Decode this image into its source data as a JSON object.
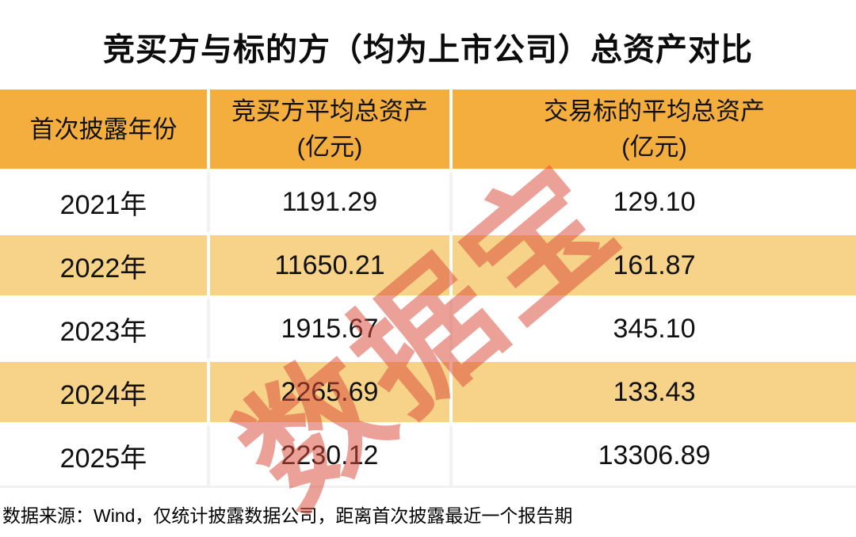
{
  "title": "竞买方与标的方（均为上市公司）总资产对比",
  "watermark": "数据宝",
  "source_note": "数据来源：Wind，仅统计披露数据公司，距离首次披露最近一个报告期",
  "colors": {
    "header_bg": "#F4AE3E",
    "highlight_row_bg": "#F7D289",
    "watermark_color": "#DB4B3A",
    "divider_grey": "#F1F1F1"
  },
  "table": {
    "header": [
      {
        "line1": "首次披露年份",
        "line2": ""
      },
      {
        "line1": "竞买方平均总资产",
        "line2": "(亿元)"
      },
      {
        "line1": "交易标的平均总资产",
        "line2": "(亿元)"
      }
    ],
    "rows": [
      {
        "year": "2021年",
        "buyer": "1191.29",
        "target": "129.10",
        "highlight": false
      },
      {
        "year": "2022年",
        "buyer": "11650.21",
        "target": "161.87",
        "highlight": true
      },
      {
        "year": "2023年",
        "buyer": "1915.67",
        "target": "345.10",
        "highlight": false
      },
      {
        "year": "2024年",
        "buyer": "2265.69",
        "target": "133.43",
        "highlight": true
      },
      {
        "year": "2025年",
        "buyer": "2230.12",
        "target": "13306.89",
        "highlight": false
      }
    ]
  },
  "chart_data": {
    "type": "table",
    "title": "竞买方与标的方（均为上市公司）总资产对比",
    "columns": [
      "首次披露年份",
      "竞买方平均总资产(亿元)",
      "交易标的平均总资产(亿元)"
    ],
    "rows": [
      [
        "2021年",
        1191.29,
        129.1
      ],
      [
        "2022年",
        11650.21,
        161.87
      ],
      [
        "2023年",
        1915.67,
        345.1
      ],
      [
        "2024年",
        2265.69,
        133.43
      ],
      [
        "2025年",
        2230.12,
        13306.89
      ]
    ],
    "source": "数据来源：Wind，仅统计披露数据公司，距离首次披露最近一个报告期"
  }
}
